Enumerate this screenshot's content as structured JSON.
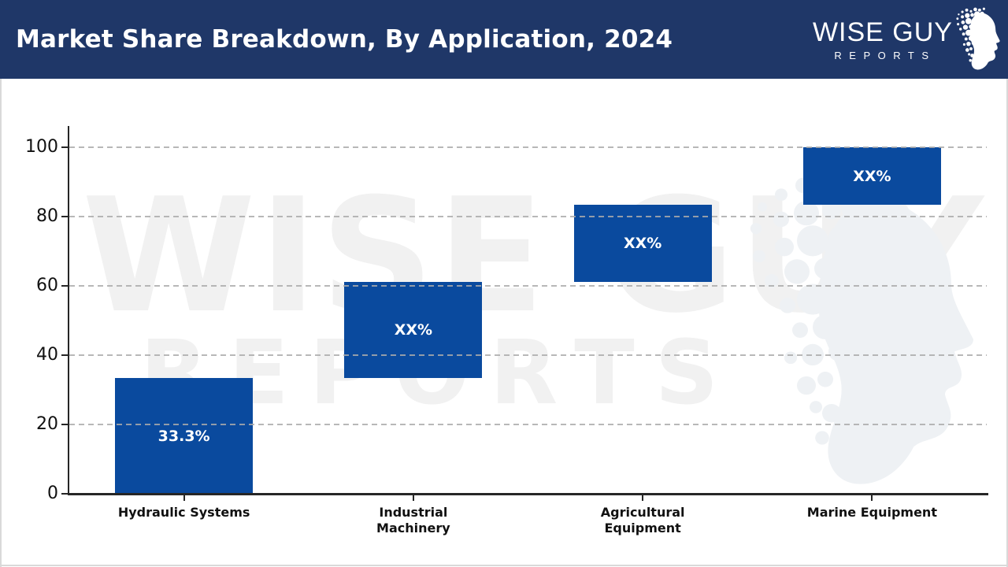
{
  "header": {
    "title": "Market Share Breakdown, By Application, 2024",
    "logo": {
      "line1": "WISE GUY",
      "line2": "REPORTS"
    }
  },
  "watermark": {
    "line1": "WISE GUY",
    "line2": "REPORTS"
  },
  "colors": {
    "header_bg": "#1f3768",
    "bar": "#0a4a9e",
    "bar_label": "#ffffff",
    "axis": "#262626",
    "grid": "#ababab",
    "tick_label": "#111111",
    "watermark": "#f1f1f1",
    "border": "#d9d9d9"
  },
  "chart_data": {
    "type": "bar",
    "subtype": "waterfall-floating-segments",
    "title": "Market Share Breakdown, By Application, 2024",
    "xlabel": "",
    "ylabel": "",
    "ylim": [
      0,
      100
    ],
    "yticks": [
      0,
      20,
      40,
      60,
      80,
      100
    ],
    "grid": true,
    "grid_axis": "y",
    "grid_style": "dashed",
    "legend": false,
    "categories": [
      "Hydraulic Systems",
      "Industrial Machinery",
      "Agricultural Equipment",
      "Marine Equipment"
    ],
    "category_label_lines": [
      [
        "Hydraulic Systems"
      ],
      [
        "Industrial",
        "Machinery"
      ],
      [
        "Agricultural",
        "Equipment"
      ],
      [
        "Marine Equipment"
      ]
    ],
    "segments": [
      {
        "category": "Hydraulic Systems",
        "start": 0,
        "end": 33.3,
        "value": 33.3,
        "label": "33.3%"
      },
      {
        "category": "Industrial Machinery",
        "start": 33.3,
        "end": 61.1,
        "value": 27.8,
        "label": "XX%"
      },
      {
        "category": "Agricultural Equipment",
        "start": 61.1,
        "end": 83.3,
        "value": 22.2,
        "label": "XX%"
      },
      {
        "category": "Marine Equipment",
        "start": 83.3,
        "end": 100,
        "value": 16.7,
        "label": "XX%"
      }
    ]
  }
}
